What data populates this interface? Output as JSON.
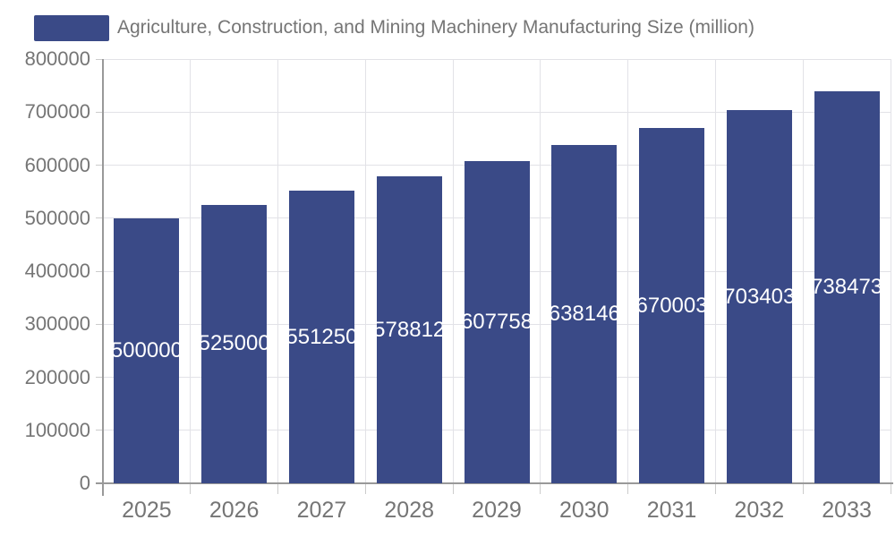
{
  "legend": {
    "label": "Agriculture, Construction, and Mining Machinery Manufacturing Size (million)",
    "swatch_color": "#3A4A87"
  },
  "chart_data": {
    "type": "bar",
    "title": "Agriculture, Construction, and Mining Machinery Manufacturing Size (million)",
    "categories": [
      "2025",
      "2026",
      "2027",
      "2028",
      "2029",
      "2030",
      "2031",
      "2032",
      "2033"
    ],
    "values": [
      500000,
      525000,
      551250,
      578812,
      607758,
      638146,
      670003,
      703403,
      738473
    ],
    "xlabel": "",
    "ylabel": "",
    "ylim": [
      0,
      800000
    ],
    "y_ticks": [
      0,
      100000,
      200000,
      300000,
      400000,
      500000,
      600000,
      700000,
      800000
    ],
    "grid": true,
    "legend_position": "top-left",
    "bar_label_position": "inside-center",
    "bar_color": "#3A4A87",
    "value_label_color": "#FFFFFF",
    "axis_text_color": "#757575",
    "grid_color": "#E2E2E7",
    "axis_line_color": "#999999"
  }
}
